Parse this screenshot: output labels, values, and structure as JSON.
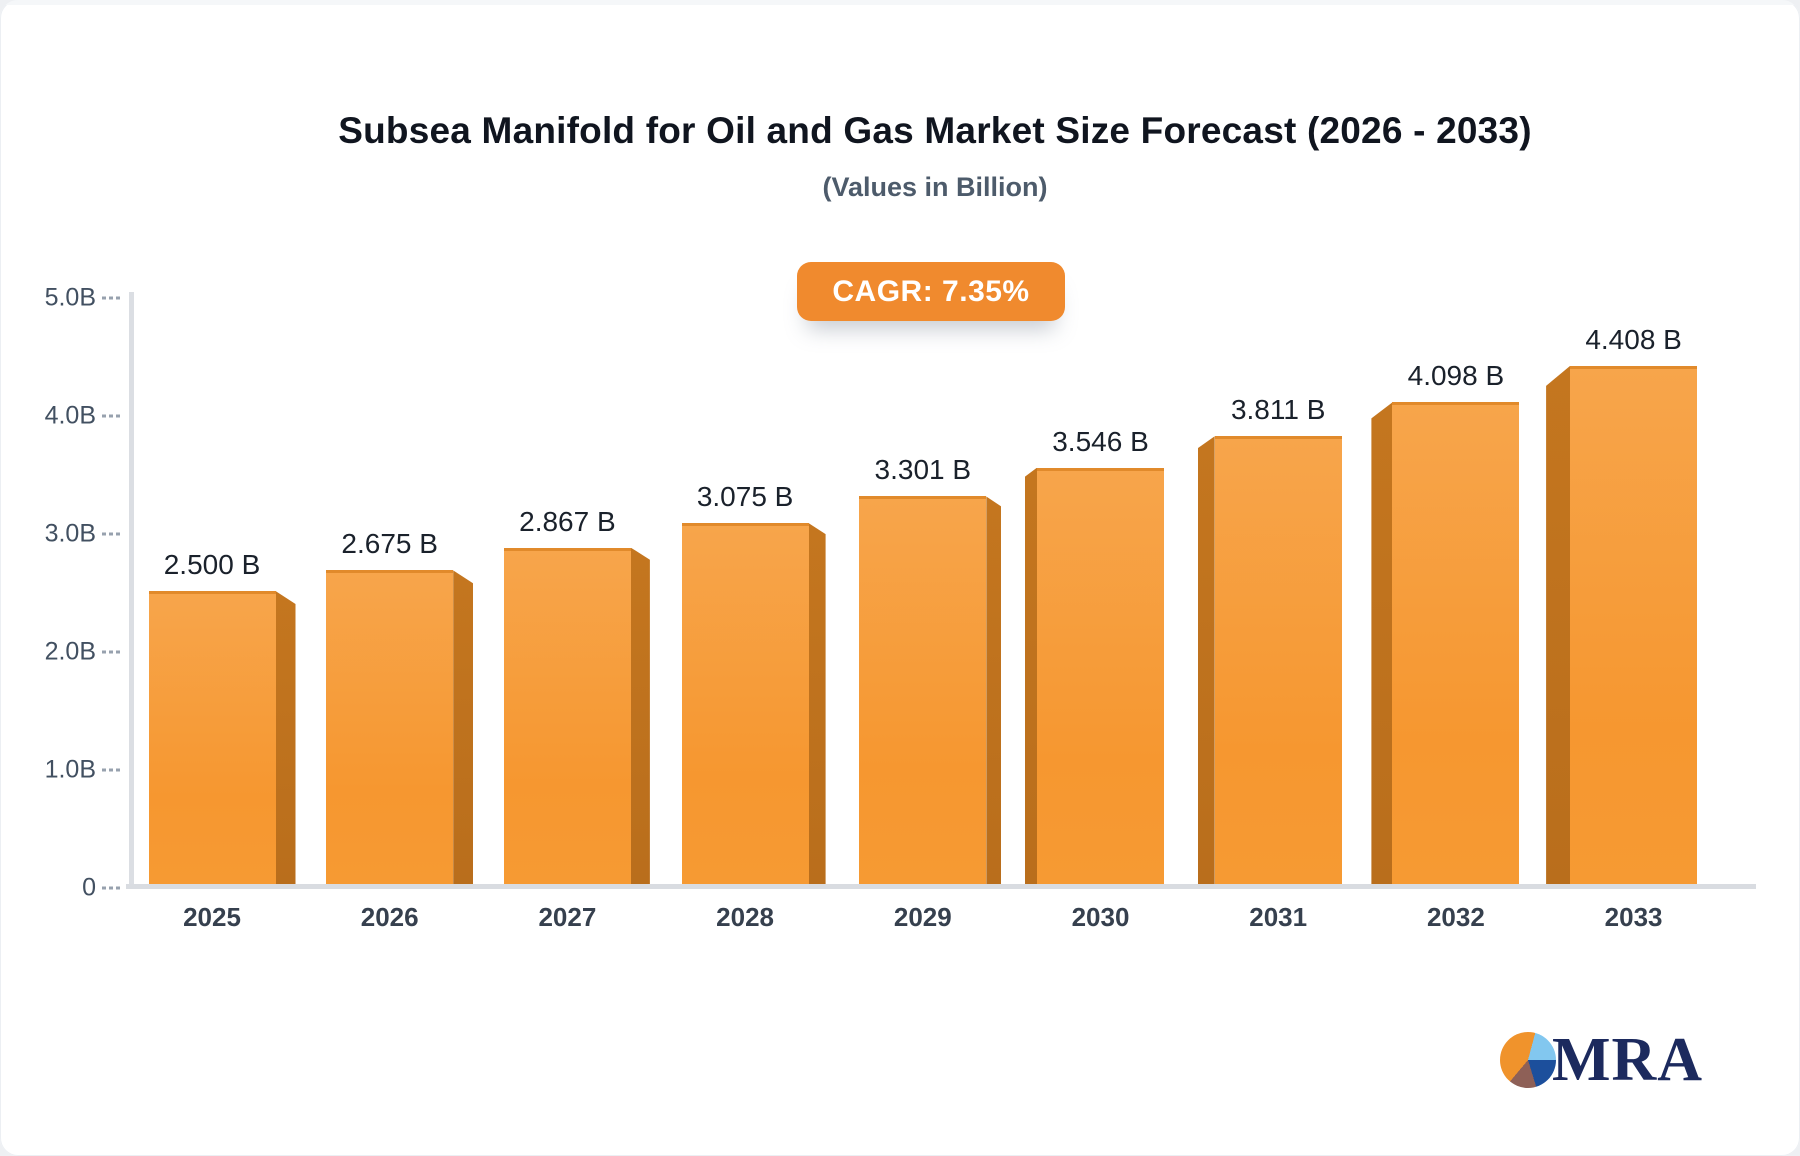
{
  "chart_data": {
    "type": "bar",
    "title": "Subsea Manifold for Oil and Gas Market Size Forecast (2026 - 2033)",
    "subtitle": "(Values in Billion)",
    "annotation": "CAGR: 7.35%",
    "categories": [
      "2025",
      "2026",
      "2027",
      "2028",
      "2029",
      "2030",
      "2031",
      "2032",
      "2033"
    ],
    "values": [
      2.5,
      2.675,
      2.867,
      3.075,
      3.301,
      3.546,
      3.811,
      4.098,
      4.408
    ],
    "value_labels": [
      "2.500 B",
      "2.675 B",
      "2.867 B",
      "3.075 B",
      "3.301 B",
      "3.546 B",
      "3.811 B",
      "4.098 B",
      "4.408 B"
    ],
    "unit": "Billion",
    "y_ticks": {
      "labels": [
        "5.0B",
        "4.0B",
        "3.0B",
        "2.0B",
        "1.0B",
        "0"
      ],
      "values": [
        5.0,
        4.0,
        3.0,
        2.0,
        1.0,
        0
      ]
    },
    "ylim": [
      0,
      5.0
    ],
    "grid": false,
    "legend": "none",
    "colors": {
      "bar_face": "#f79e3a",
      "bar_side_3d": "#c0721e",
      "bar_top_edge": "#e18a2b",
      "accent_badge": "#f08a2e",
      "axis_line": "#d9dce1",
      "tick_text": "#425061",
      "label_text": "#1a212b"
    }
  },
  "logo": {
    "text": "MRA",
    "mark": "pie-chart-icon",
    "pie_colors": [
      "#f0932c",
      "#82c7ef",
      "#1c4f9c",
      "#8e6057"
    ]
  }
}
